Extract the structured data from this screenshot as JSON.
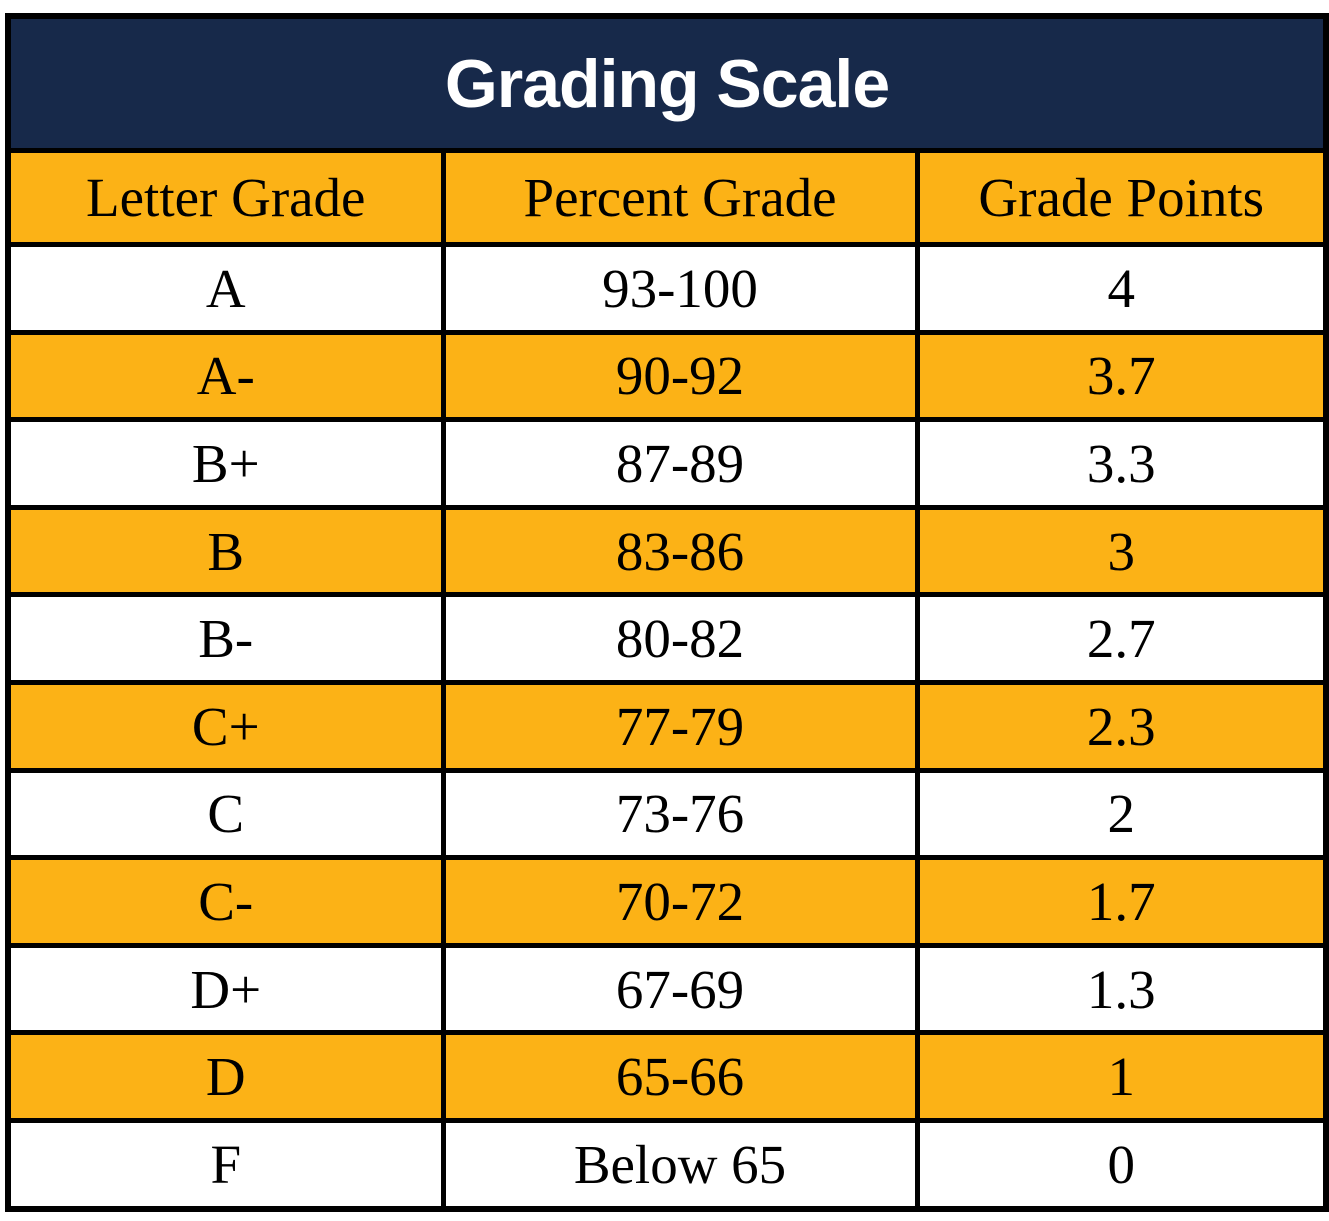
{
  "table": {
    "title": "Grading Scale",
    "columns": [
      {
        "label": "Letter Grade"
      },
      {
        "label": "Percent Grade"
      },
      {
        "label": "Grade Points"
      }
    ],
    "rows": [
      {
        "letter": "A",
        "percent": "93-100",
        "points": "4",
        "highlighted": false
      },
      {
        "letter": "A-",
        "percent": "90-92",
        "points": "3.7",
        "highlighted": true
      },
      {
        "letter": "B+",
        "percent": "87-89",
        "points": "3.3",
        "highlighted": false
      },
      {
        "letter": "B",
        "percent": "83-86",
        "points": "3",
        "highlighted": true
      },
      {
        "letter": "B-",
        "percent": "80-82",
        "points": "2.7",
        "highlighted": false
      },
      {
        "letter": "C+",
        "percent": "77-79",
        "points": "2.3",
        "highlighted": true
      },
      {
        "letter": "C",
        "percent": "73-76",
        "points": "2",
        "highlighted": false
      },
      {
        "letter": "C-",
        "percent": "70-72",
        "points": "1.7",
        "highlighted": true
      },
      {
        "letter": "D+",
        "percent": "67-69",
        "points": "1.3",
        "highlighted": false
      },
      {
        "letter": "D",
        "percent": "65-66",
        "points": "1",
        "highlighted": true
      },
      {
        "letter": "F",
        "percent": "Below 65",
        "points": "0",
        "highlighted": false
      }
    ],
    "colors": {
      "title_background": "#17294A",
      "title_text": "#FFFFFF",
      "highlight_row": "#FCB216",
      "plain_row": "#FFFFFF",
      "border": "#000000",
      "cell_text": "#000000"
    }
  },
  "chart_data": {
    "type": "table",
    "title": "Grading Scale",
    "columns": [
      "Letter Grade",
      "Percent Grade",
      "Grade Points"
    ],
    "rows": [
      [
        "A",
        "93-100",
        "4"
      ],
      [
        "A-",
        "90-92",
        "3.7"
      ],
      [
        "B+",
        "87-89",
        "3.3"
      ],
      [
        "B",
        "83-86",
        "3"
      ],
      [
        "B-",
        "80-82",
        "2.7"
      ],
      [
        "C+",
        "77-79",
        "2.3"
      ],
      [
        "C",
        "73-76",
        "2"
      ],
      [
        "C-",
        "70-72",
        "1.7"
      ],
      [
        "D+",
        "67-69",
        "1.3"
      ],
      [
        "D",
        "65-66",
        "1"
      ],
      [
        "F",
        "Below 65",
        "0"
      ]
    ]
  }
}
